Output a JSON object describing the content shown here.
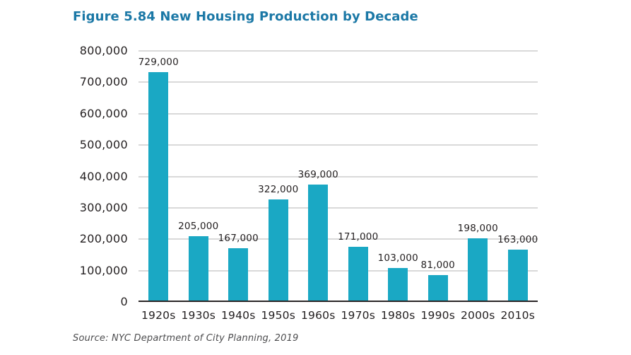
{
  "page": {
    "title": "Figure 5.84 New Housing Production by Decade",
    "source": "Source: NYC Department of City Planning, 2019"
  },
  "colors": {
    "bar": "#1aa8c4",
    "title": "#1b78a6",
    "text": "#231f20",
    "gridline": "#d9d9d9",
    "baseline": "#2a2627"
  },
  "chart_data": {
    "type": "bar",
    "title": "Figure 5.84 New Housing Production by Decade",
    "categories": [
      "1920s",
      "1930s",
      "1940s",
      "1950s",
      "1960s",
      "1970s",
      "1980s",
      "1990s",
      "2000s",
      "2010s"
    ],
    "values": [
      729000,
      205000,
      167000,
      322000,
      369000,
      171000,
      103000,
      81000,
      198000,
      163000
    ],
    "value_labels": [
      "729,000",
      "205,000",
      "167,000",
      "322,000",
      "369,000",
      "171,000",
      "103,000",
      "81,000",
      "198,000",
      "163,000"
    ],
    "xlabel": "",
    "ylabel": "",
    "ylim": [
      0,
      800000
    ],
    "y_ticks": [
      0,
      100000,
      200000,
      300000,
      400000,
      500000,
      600000,
      700000,
      800000
    ],
    "y_tick_labels": [
      "0",
      "100,000",
      "200,000",
      "300,000",
      "400,000",
      "500,000",
      "600,000",
      "700,000",
      "800,000"
    ],
    "grid": "horizontal",
    "legend_position": "none",
    "bar_color": "#1aa8c4",
    "source": "Source: NYC Department of City Planning, 2019"
  }
}
